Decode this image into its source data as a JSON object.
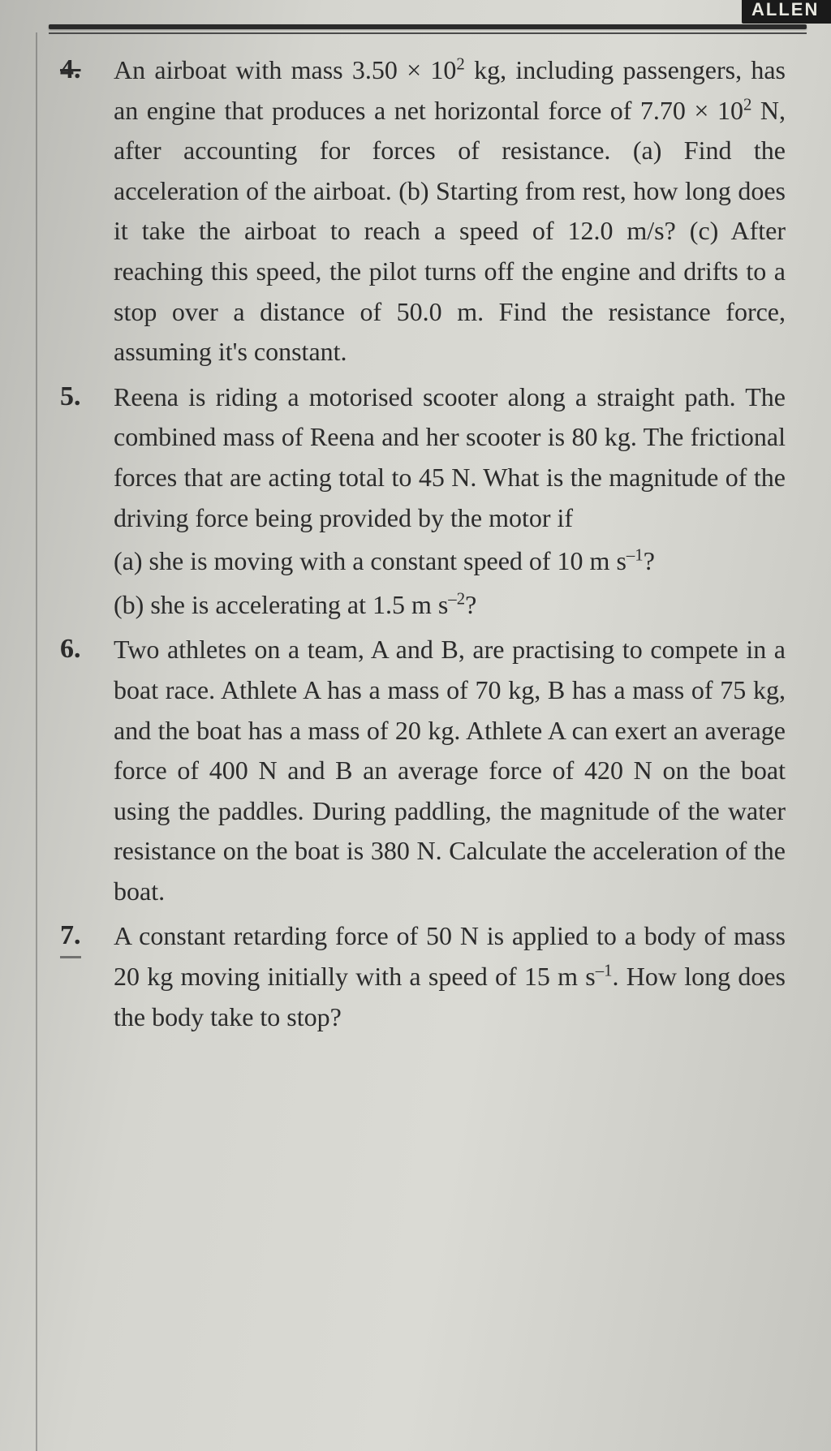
{
  "corner_badge": "ALLEN",
  "questions": [
    {
      "num": "4.",
      "num_struck": true,
      "body_html": "An airboat with mass 3.50 × 10<sup>2</sup> kg, including passengers, has an engine that produces a net horizontal force of 7.70 × 10<sup>2</sup> N, after accounting for forces of resistance. (a) Find the acceleration of the airboat. (b) Starting from rest, how long does it take the airboat to reach a speed of 12.0 m/s? (c) After reaching this speed, the pilot turns off the engine and drifts to a stop over a distance of 50.0 m. Find the resistance force, assuming it's constant."
    },
    {
      "num": "5.",
      "num_struck": false,
      "body_html": "Reena is riding a motorised scooter along a straight path. The combined mass of Reena and her scooter is 80 kg. The frictional forces that are acting total to 45 N. What is the magnitude of the driving force being provided by the motor if",
      "subparts": [
        {
          "label": "(a)",
          "text_html": "she is moving with a constant speed of 10&nbsp;m&nbsp;s<sup>–1</sup>?"
        },
        {
          "label": "(b)",
          "text_html": "she is accelerating at 1.5 m s<sup>–2</sup>?"
        }
      ]
    },
    {
      "num": "6.",
      "num_struck": false,
      "body_html": "Two athletes on a team, A and B, are practising to compete in a boat race. Athlete A has a mass of 70 kg, B has a mass of 75 kg, and the boat has a mass of 20 kg. Athlete A can exert an average force of 400 N and B an average force of 420 N on the boat using the paddles. During paddling, the magnitude of the water resistance on the boat is 380 N. Calculate the acceleration of the boat."
    },
    {
      "num": "7.",
      "num_struck": true,
      "body_html": "A constant retarding force of 50 N is applied to a body of mass 20 kg moving initially with a speed of 15 m s<sup>–1</sup>. How long does the body take to stop?"
    }
  ]
}
